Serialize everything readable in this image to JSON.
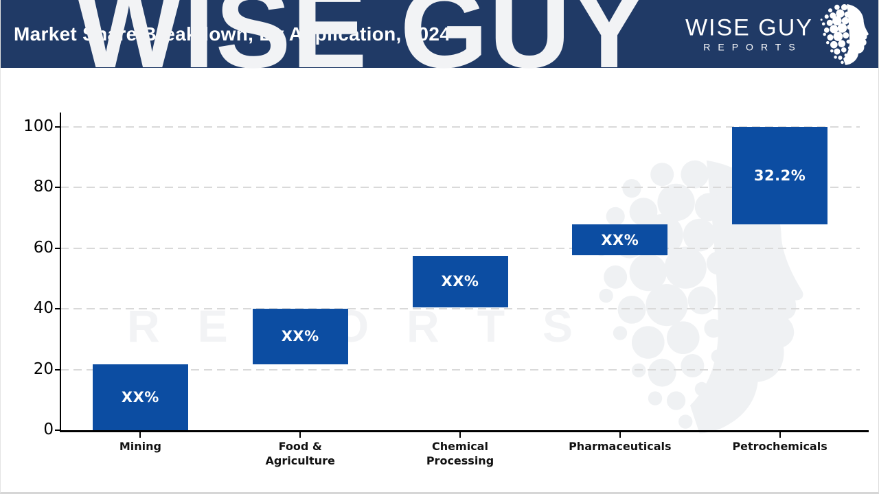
{
  "header": {
    "title": "Market Share Breakdown, By Application, 2024",
    "bg_color": "#203a66",
    "logo": {
      "line1": "WISE GUY",
      "line2": "REPORTS"
    }
  },
  "watermark": {
    "line1": "WISE GUY",
    "line2": "REPORTS"
  },
  "chart_data": {
    "type": "bar",
    "variant": "floating-waterfall",
    "title": "Market Share Breakdown, By Application, 2024",
    "categories": [
      "Mining",
      "Food & Agriculture",
      "Chemical Processing",
      "Pharmaceuticals",
      "Petrochemicals"
    ],
    "bars": [
      {
        "category": "Mining",
        "start": 0,
        "end": 21.7,
        "label": "XX%"
      },
      {
        "category": "Food & Agriculture",
        "start": 21.7,
        "end": 40.0,
        "label": "XX%"
      },
      {
        "category": "Chemical Processing",
        "start": 40.4,
        "end": 57.5,
        "label": "XX%"
      },
      {
        "category": "Pharmaceuticals",
        "start": 57.7,
        "end": 67.7,
        "label": "XX%"
      },
      {
        "category": "Petrochemicals",
        "start": 67.8,
        "end": 100,
        "label": "32.2%"
      }
    ],
    "xlabel": "",
    "ylabel": "",
    "yticks": [
      0,
      20,
      40,
      60,
      80,
      100
    ],
    "ylim": [
      0,
      105
    ],
    "grid": "horizontal-dashed",
    "legend": "none",
    "bar_color": "#0c4da2",
    "bar_label_color": "#ffffff",
    "gridline_color": "#d9d9d9",
    "axis_color": "#000000"
  }
}
